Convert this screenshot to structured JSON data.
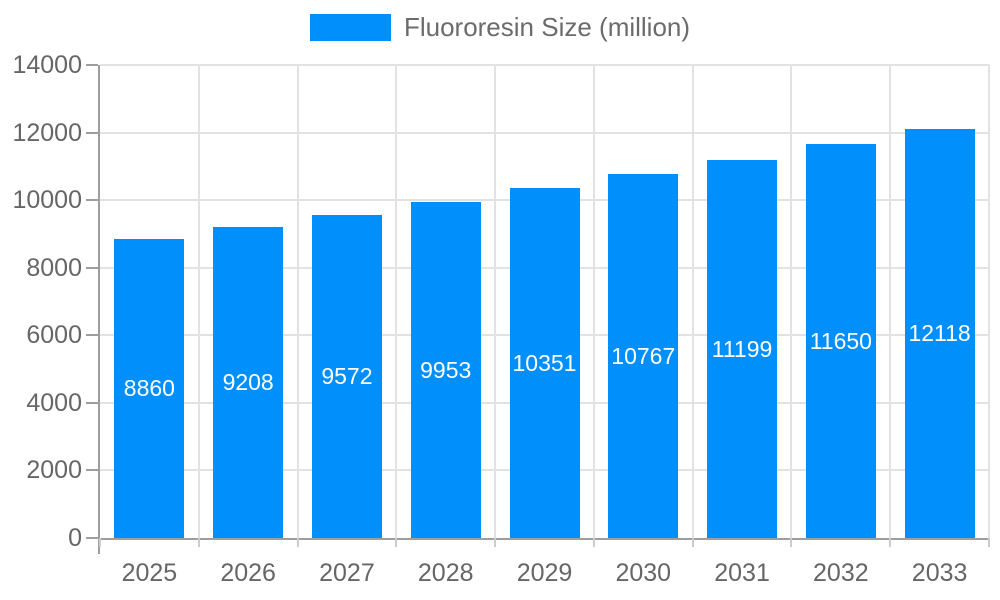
{
  "legend": {
    "label": "Fluororesin Size (million)"
  },
  "colors": {
    "bar": "#008FFB",
    "legend_text": "#6b6b6b",
    "axis_text": "#666666",
    "grid": "#e2e2e2",
    "axis_line": "#9e9e9e",
    "category_tick": "#cccccc",
    "data_label": "#ffffff",
    "background": "#ffffff"
  },
  "chart_data": {
    "type": "bar",
    "title": "",
    "xlabel": "",
    "ylabel": "",
    "categories": [
      "2025",
      "2026",
      "2027",
      "2028",
      "2029",
      "2030",
      "2031",
      "2032",
      "2033"
    ],
    "series": [
      {
        "name": "Fluororesin Size (million)",
        "values": [
          8860,
          9208,
          9572,
          9953,
          10351,
          10767,
          11199,
          11650,
          12118
        ]
      }
    ],
    "ylim": [
      0,
      14000
    ],
    "ytick_step": 2000,
    "ytick_labels": [
      "0",
      "2000",
      "4000",
      "6000",
      "8000",
      "10000",
      "12000",
      "14000"
    ],
    "grid": true,
    "legend_position": "top",
    "data_labels": "inside-center-white"
  }
}
